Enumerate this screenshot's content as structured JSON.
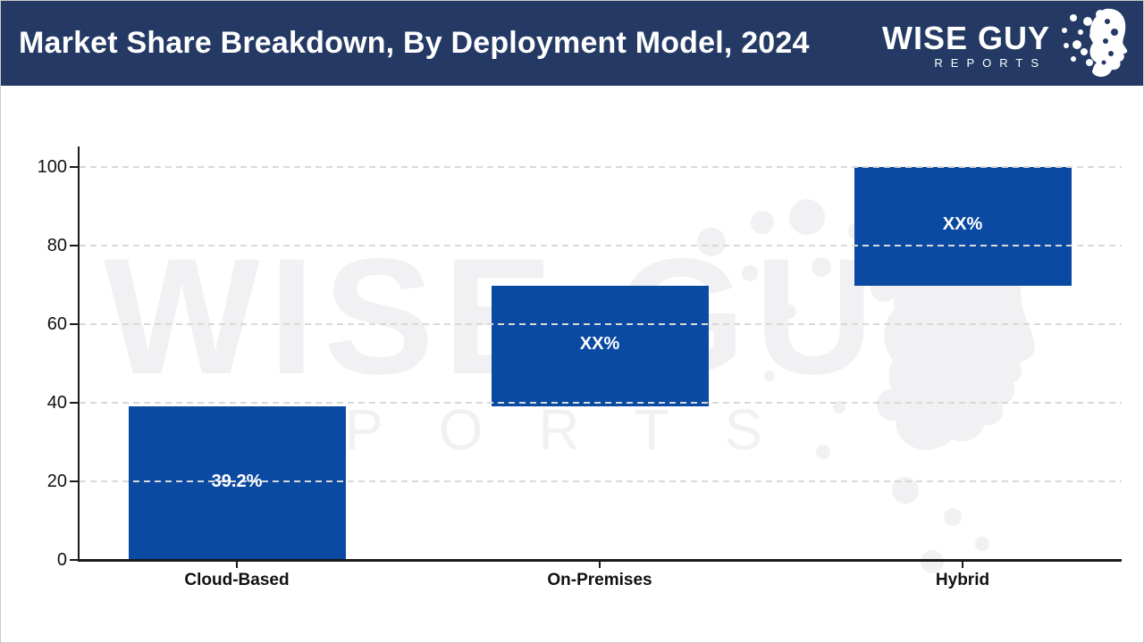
{
  "header": {
    "title": "Market Share Breakdown, By Deployment Model, 2024",
    "brand": {
      "name": "WISE GUY",
      "sub": "REPORTS"
    }
  },
  "watermark": {
    "name": "WISE GUY",
    "sub": "REPORTS"
  },
  "chart_data": {
    "type": "bar",
    "subtype": "waterfall",
    "title": "Market Share Breakdown, By Deployment Model, 2024",
    "categories": [
      "Cloud-Based",
      "On-Premises",
      "Hybrid"
    ],
    "series": [
      {
        "name": "Market share by deployment model (%)",
        "segments": [
          {
            "category": "Cloud-Based",
            "start": 0,
            "end": 39.2,
            "data_label": "39.2%"
          },
          {
            "category": "On-Premises",
            "start": 39.2,
            "end": 69.8,
            "data_label": "XX%"
          },
          {
            "category": "Hybrid",
            "start": 69.8,
            "end": 100,
            "data_label": "XX%"
          }
        ]
      }
    ],
    "xlabel": "",
    "ylabel": "",
    "ylim": [
      0,
      105
    ],
    "yticks": [
      0,
      20,
      40,
      60,
      80,
      100
    ],
    "grid": "horizontal-dashed",
    "legend": "none"
  },
  "colors": {
    "header_bg": "#243a64",
    "bar": "#0b4aa2",
    "gridline": "#d9d9d9",
    "axis": "#1a1a1a",
    "watermark": "#f1f1f3",
    "page_border": "#cccccc"
  }
}
